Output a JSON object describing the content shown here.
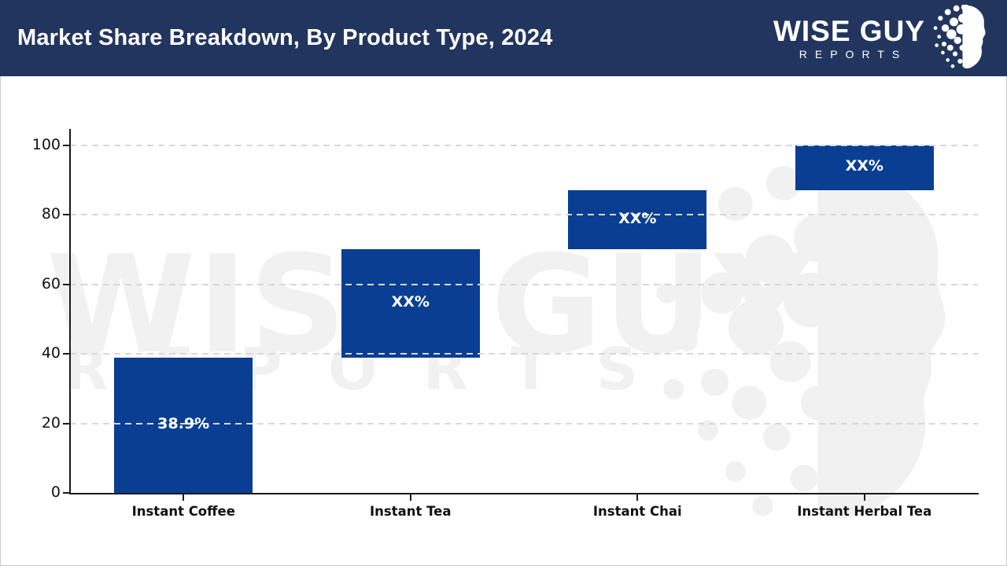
{
  "header": {
    "title": "Market Share Breakdown, By Product Type, 2024",
    "logo": {
      "line1": "WISE GUY",
      "line2": "REPORTS"
    }
  },
  "watermark": {
    "line1": "WISE GUY",
    "line2": "REPORTS"
  },
  "colors": {
    "header_bg": "#22355E",
    "bar_blue": "#0A3E92",
    "gridline_gray": "#d8d8d8",
    "watermark_gray": "#f1f1f2",
    "axis_black": "#1a1a1a"
  },
  "chart_data": {
    "type": "bar",
    "variant": "floating_breakdown_waterfall",
    "title": "Market Share Breakdown, By Product Type, 2024",
    "categories": [
      "Instant Coffee",
      "Instant Tea",
      "Instant Chai",
      "Instant Herbal Tea"
    ],
    "bars": [
      {
        "category": "Instant Coffee",
        "start": 0,
        "end": 38.9,
        "value_label": "38.9%"
      },
      {
        "category": "Instant Tea",
        "start": 38.9,
        "end": 70,
        "value_label": "XX%"
      },
      {
        "category": "Instant Chai",
        "start": 70,
        "end": 87,
        "value_label": "XX%"
      },
      {
        "category": "Instant Herbal Tea",
        "start": 87,
        "end": 100,
        "value_label": "XX%"
      }
    ],
    "yticks": [
      0,
      20,
      40,
      60,
      80,
      100
    ],
    "ylim": [
      0,
      105
    ],
    "xlabel": "",
    "ylabel": "",
    "grid": "horizontal-dashed",
    "legend": "none",
    "bar_color": "#0A3E92",
    "bar_label_color": "#ffffff"
  }
}
